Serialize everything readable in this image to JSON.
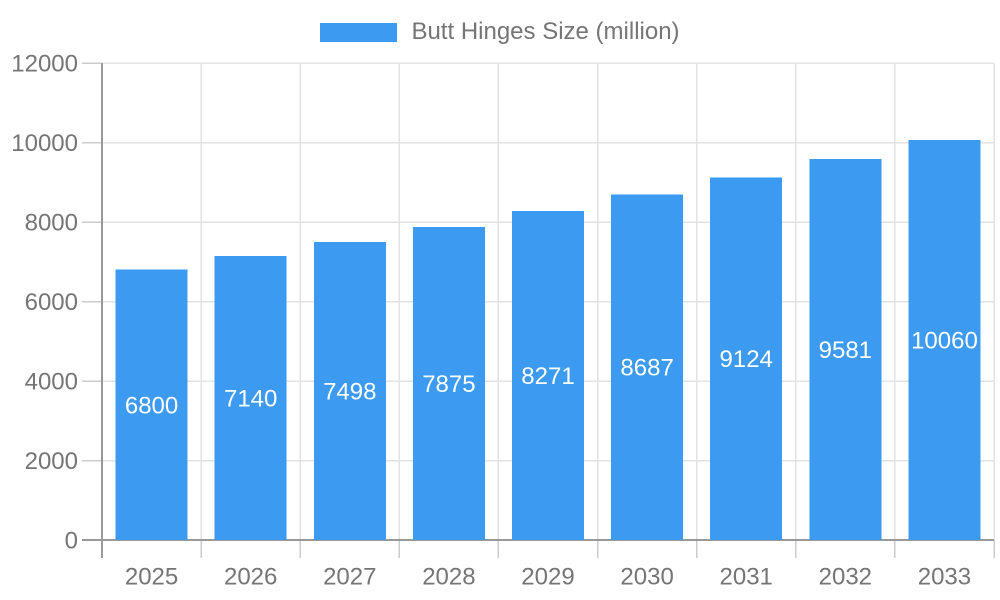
{
  "chart_data": {
    "type": "bar",
    "title": "",
    "legend_label": "Butt Hinges Size (million)",
    "legend_position": "top",
    "categories": [
      "2025",
      "2026",
      "2027",
      "2028",
      "2029",
      "2030",
      "2031",
      "2032",
      "2033"
    ],
    "series": [
      {
        "name": "Butt Hinges Size (million)",
        "values": [
          6800,
          7140,
          7498,
          7875,
          8271,
          8687,
          9124,
          9581,
          10060
        ]
      }
    ],
    "bar_value_labels": [
      6800,
      7140,
      7498,
      7875,
      8271,
      8687,
      9124,
      9581,
      10060
    ],
    "xlabel": "",
    "ylabel": "",
    "ylim": [
      0,
      12000
    ],
    "yticks": [
      0,
      2000,
      4000,
      6000,
      8000,
      10000,
      12000
    ],
    "grid": true,
    "colors": {
      "bar": "#3C9AF0",
      "bar_label_text": "#FFFFFF",
      "axis_text": "#757575",
      "axis_line": "#999999",
      "gridline": "#E3E3E3",
      "tick_line": "#CCCCCC",
      "background": "#FFFFFF"
    }
  }
}
